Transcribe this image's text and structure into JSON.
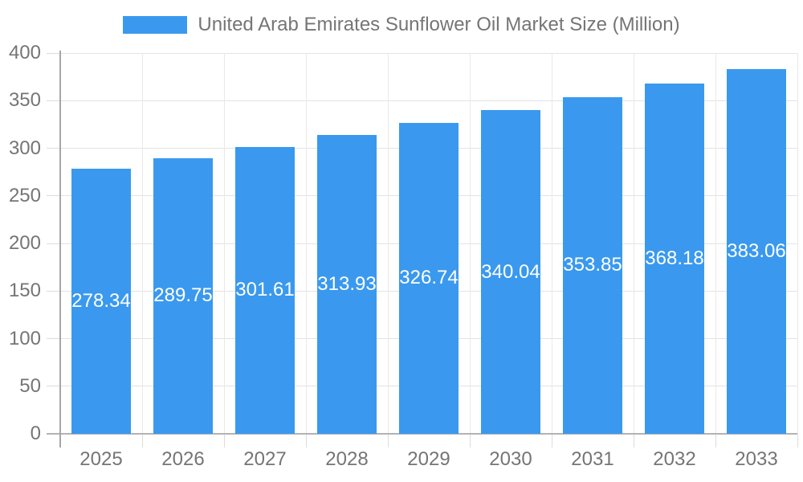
{
  "legend": {
    "label": "United Arab Emirates Sunflower Oil Market Size (Million)"
  },
  "chart_data": {
    "type": "bar",
    "title": "United Arab Emirates Sunflower Oil Market Size (Million)",
    "categories": [
      "2025",
      "2026",
      "2027",
      "2028",
      "2029",
      "2030",
      "2031",
      "2032",
      "2033"
    ],
    "values": [
      278.34,
      289.75,
      301.61,
      313.93,
      326.74,
      340.04,
      353.85,
      368.18,
      383.06
    ],
    "value_labels": [
      "278.34",
      "289.75",
      "301.61",
      "313.93",
      "326.74",
      "340.04",
      "353.85",
      "368.18",
      "383.06"
    ],
    "xlabel": "",
    "ylabel": "",
    "ylim": [
      0,
      400
    ],
    "yticks": [
      0,
      50,
      100,
      150,
      200,
      250,
      300,
      350,
      400
    ],
    "grid": true,
    "legend_position": "top",
    "value_label_position": "inside-middle",
    "colors": {
      "bar": "#3A99EE",
      "value_label": "#ffffff",
      "axis_text": "#757575",
      "y_axis_line": "#a6a6a6",
      "x_axis_line": "#b3b3b3",
      "grid_h": "#e3e3e3",
      "grid_v": "#e9e9e9",
      "tick": "#dcdcdc"
    }
  }
}
